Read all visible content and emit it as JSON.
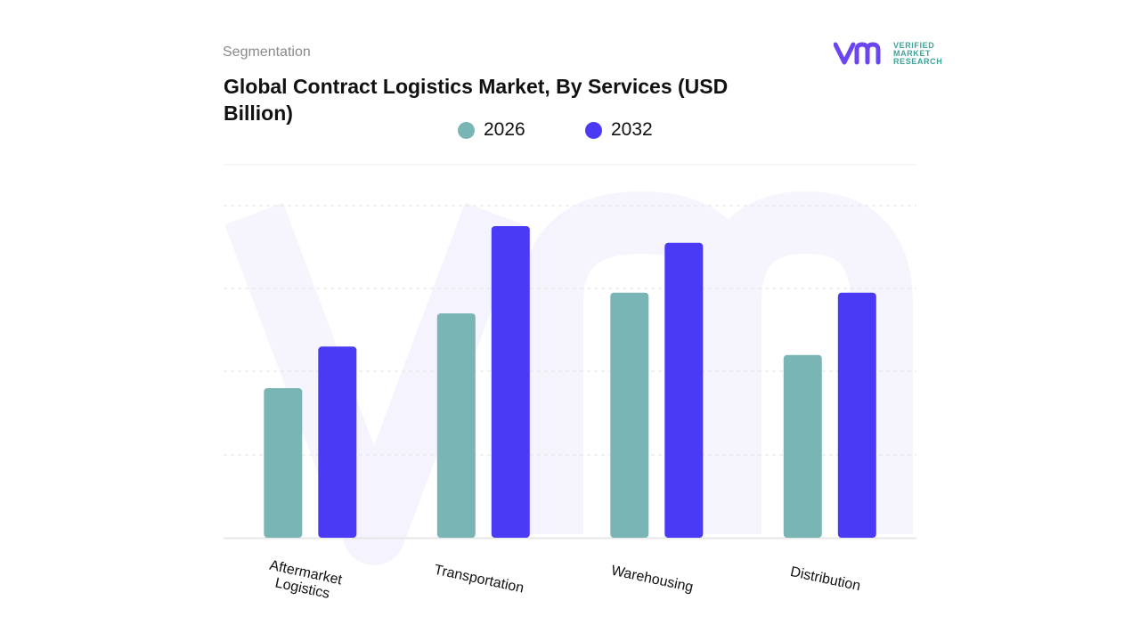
{
  "header": {
    "section_label": "Segmentation",
    "title": "Global Contract Logistics Market, By Services (USD Billion)"
  },
  "logo": {
    "lines": [
      "VERIFIED",
      "MARKET",
      "RESEARCH"
    ],
    "icon": "vmr-logo-icon",
    "colors": {
      "mark": "#6b45f0",
      "text": "#3aa39a"
    }
  },
  "chart_data": {
    "type": "bar",
    "title": "Global Contract Logistics Market, By Services (USD Billion)",
    "categories": [
      "Aftermarket Logistics",
      "Transportation",
      "Warehousing",
      "Distribution"
    ],
    "series": [
      {
        "name": "2026",
        "color": "#7ab5b5",
        "values": [
          1.8,
          2.7,
          2.95,
          2.2
        ]
      },
      {
        "name": "2032",
        "color": "#4b3af5",
        "values": [
          2.3,
          3.75,
          3.55,
          2.95
        ]
      }
    ],
    "ylim": [
      0,
      4.5
    ],
    "grid": true,
    "legend_position": "top-center",
    "xlabel": "",
    "ylabel": ""
  }
}
